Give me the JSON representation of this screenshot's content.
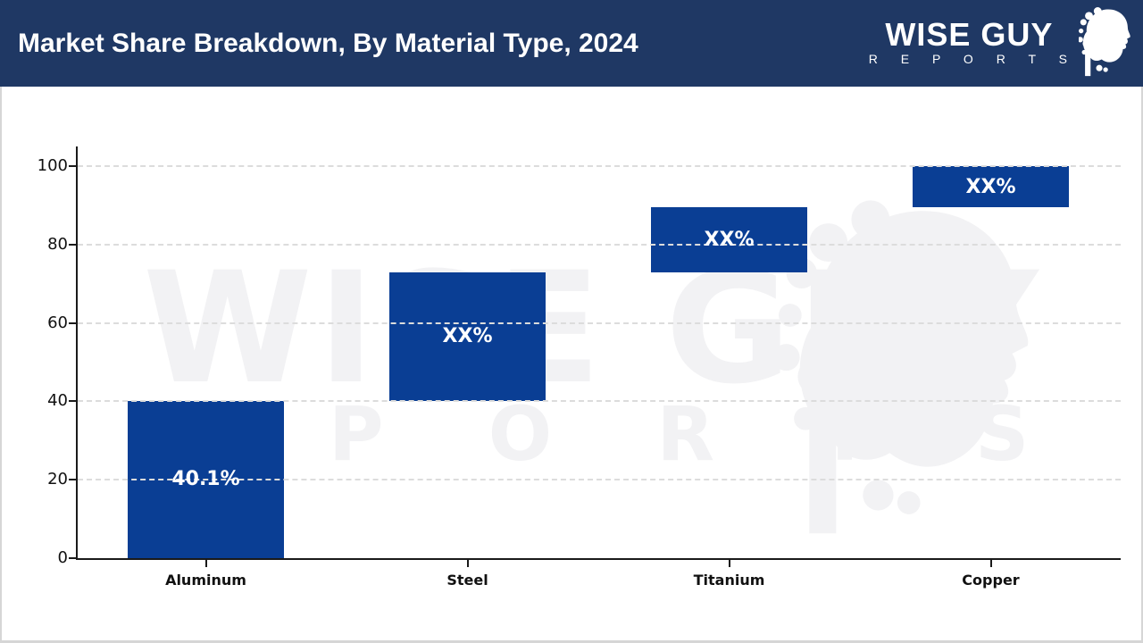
{
  "header": {
    "title": "Market Share Breakdown, By Material Type, 2024",
    "logo": {
      "line1": "WISE GUY",
      "line2": "R E P O R T S"
    }
  },
  "watermark": {
    "line1": "WISE GUY",
    "line2": "P O R T S"
  },
  "colors": {
    "header_bg": "#1f3864",
    "bar": "#0a3e94",
    "bar_label": "#ffffff",
    "gridline": "#dcdcdc",
    "watermark": "#f2f2f4"
  },
  "chart_data": {
    "type": "bar",
    "subtype": "waterfall",
    "title": "Market Share Breakdown, By Material Type, 2024",
    "categories": [
      "Aluminum",
      "Steel",
      "Titanium",
      "Copper"
    ],
    "bars": [
      {
        "category": "Aluminum",
        "start": 0,
        "end": 40.1,
        "label": "40.1%"
      },
      {
        "category": "Steel",
        "start": 40.1,
        "end": 73,
        "label": "XX%"
      },
      {
        "category": "Titanium",
        "start": 73,
        "end": 89.5,
        "label": "XX%"
      },
      {
        "category": "Copper",
        "start": 89.5,
        "end": 100,
        "label": "XX%"
      }
    ],
    "xlabel": "",
    "ylabel": "",
    "yticks": [
      0,
      20,
      40,
      60,
      80,
      100
    ],
    "ylim": [
      0,
      105
    ],
    "grid": "horizontal-dashed",
    "legend": "none",
    "bar_color": "#0a3e94",
    "bar_label_color": "#ffffff"
  }
}
